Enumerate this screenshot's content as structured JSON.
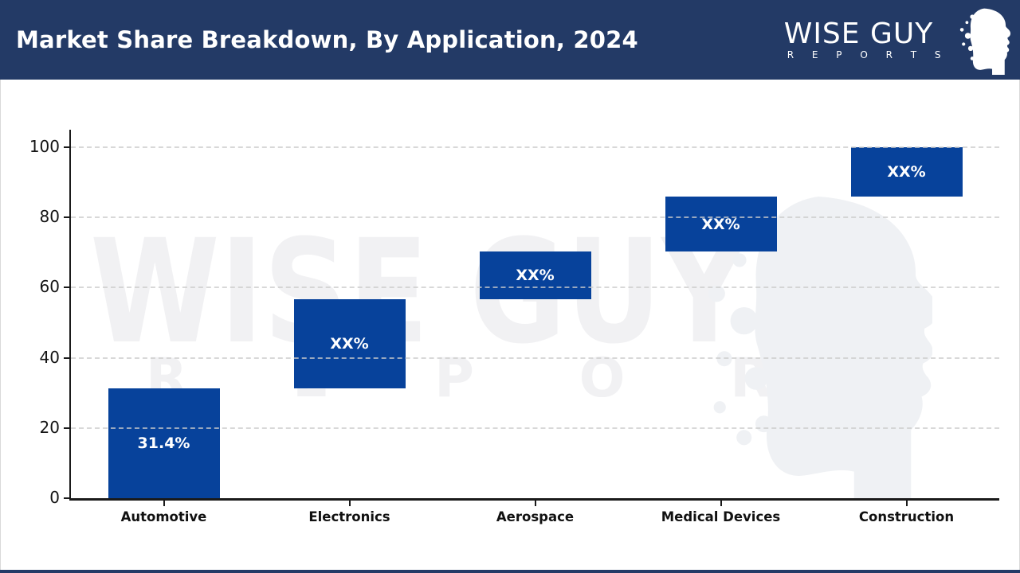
{
  "header": {
    "title": "Market Share Breakdown, By Application, 2024",
    "logo": {
      "line1": "WISE GUY",
      "line2": "R E P O R T S"
    }
  },
  "watermark": {
    "line1": "WISE GUY",
    "line2": "R E P O R T S"
  },
  "colors": {
    "header_bg": "#233a66",
    "bar": "#07429b",
    "bar_label": "#ffffff",
    "grid": "#cbcbcb",
    "axis": "#1a1a1a",
    "watermark": "#f1f1f3"
  },
  "chart_data": {
    "type": "bar",
    "subtype": "waterfall",
    "title": "Market Share Breakdown, By Application, 2024",
    "categories": [
      "Automotive",
      "Electronics",
      "Aerospace",
      "Medical Devices",
      "Construction"
    ],
    "segments": [
      {
        "start": 0,
        "end": 31.4,
        "label": "31.4%"
      },
      {
        "start": 31.4,
        "end": 56.8,
        "label": "XX%"
      },
      {
        "start": 56.8,
        "end": 70.3,
        "label": "XX%"
      },
      {
        "start": 70.3,
        "end": 85.9,
        "label": "XX%"
      },
      {
        "start": 85.9,
        "end": 100,
        "label": "XX%"
      }
    ],
    "yticks": [
      0,
      20,
      40,
      60,
      80,
      100
    ],
    "ylim": [
      0,
      105
    ],
    "xlabel": "",
    "ylabel": "",
    "grid": "horizontal-dashed",
    "legend": "none"
  }
}
